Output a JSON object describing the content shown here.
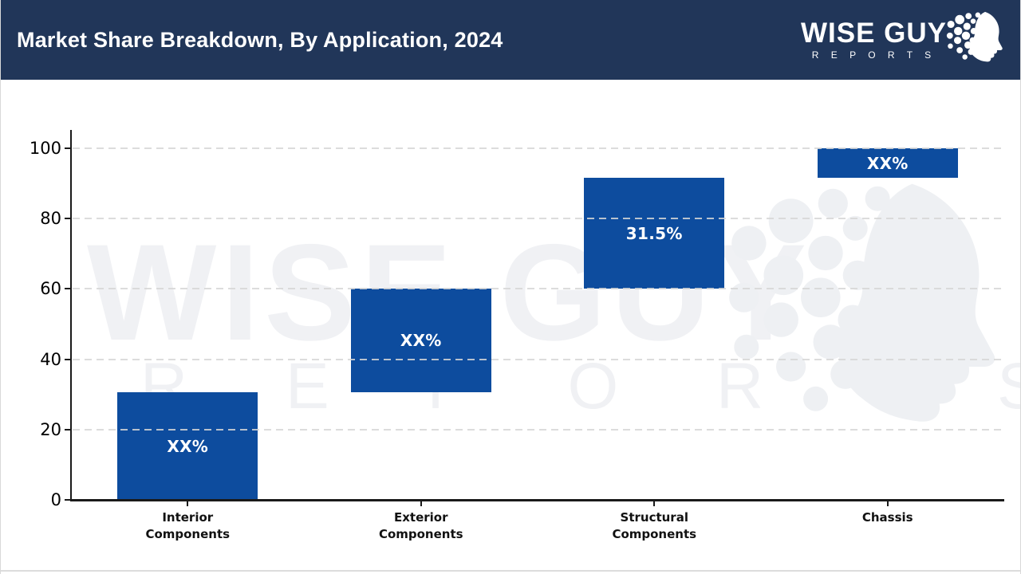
{
  "header": {
    "title": "Market Share Breakdown, By Application, 2024",
    "logo": {
      "name": "WISE GUY",
      "tagline": "R E P O R T S"
    }
  },
  "watermark": {
    "name": "WISE GUY",
    "tagline": "R E P O R T S"
  },
  "chart_data": {
    "type": "bar",
    "subtype": "waterfall",
    "title": "Market Share Breakdown, By Application, 2024",
    "categories": [
      "Interior\nComponents",
      "Exterior\nComponents",
      "Structural\nComponents",
      "Chassis"
    ],
    "bars": [
      {
        "category": "Interior Components",
        "start": 0,
        "end": 30.5,
        "label": "XX%"
      },
      {
        "category": "Exterior Components",
        "start": 30.5,
        "end": 60,
        "label": "XX%"
      },
      {
        "category": "Structural Components",
        "start": 60,
        "end": 91.5,
        "label": "31.5%"
      },
      {
        "category": "Chassis",
        "start": 91.5,
        "end": 100,
        "label": "XX%"
      }
    ],
    "ylim": [
      0,
      100
    ],
    "yticks": [
      0,
      20,
      40,
      60,
      80,
      100
    ],
    "grid": "dashed-horizontal",
    "legend": "none",
    "bar_color": "#0d4c9e",
    "bar_label_color": "#ffffff"
  },
  "colors": {
    "header_bg": "#213659",
    "bar": "#0d4c9e",
    "grid": "#d9d9d9",
    "axis": "#1a1a1a",
    "watermark": "#f0f1f4"
  }
}
